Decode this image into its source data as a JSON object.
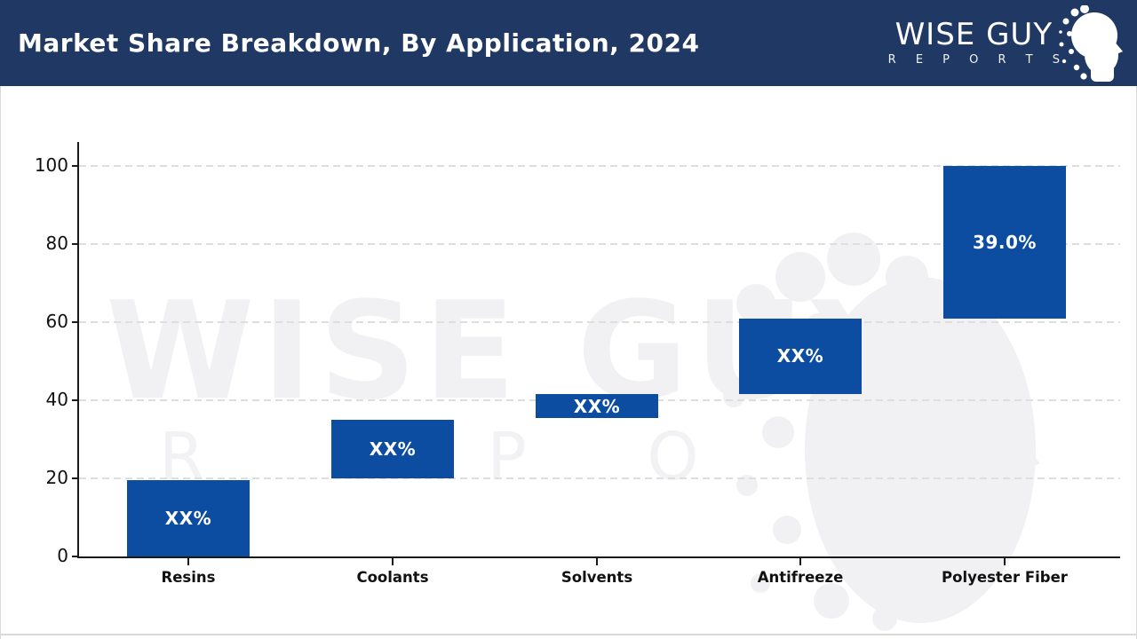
{
  "header": {
    "title": "Market Share Breakdown, By Application, 2024",
    "logo": {
      "line1": "WISE GUY",
      "line2": "R E P O R T S"
    }
  },
  "watermark": {
    "line1": "WISE GUY",
    "line2": "R E P O R T S"
  },
  "chart_data": {
    "type": "bar",
    "subtype": "waterfall",
    "title": "Market Share Breakdown, By Application, 2024",
    "categories": [
      "Resins",
      "Coolants",
      "Solvents",
      "Antifreeze",
      "Polyester Fiber"
    ],
    "bars": [
      {
        "category": "Resins",
        "start": 0,
        "end": 19.5,
        "label": "XX%"
      },
      {
        "category": "Coolants",
        "start": 20,
        "end": 35,
        "label": "XX%"
      },
      {
        "category": "Solvents",
        "start": 35.5,
        "end": 41.5,
        "label": "XX%"
      },
      {
        "category": "Antifreeze",
        "start": 41.5,
        "end": 61,
        "label": "XX%"
      },
      {
        "category": "Polyester Fiber",
        "start": 61,
        "end": 100,
        "label": "39.0%"
      }
    ],
    "yticks": [
      0,
      20,
      40,
      60,
      80,
      100
    ],
    "ylim": [
      0,
      106
    ],
    "xlabel": "",
    "ylabel": "",
    "grid": "dashed-horizontal",
    "legend": "none"
  },
  "colors": {
    "header_bg": "#1F3864",
    "bar_fill": "#0C4DA2",
    "bar_label": "#ffffff",
    "gridline": "#dedede",
    "axis": "#1a1a1a",
    "watermark": "#f1f1f4",
    "bottom_rule": "#d9d9d9"
  }
}
